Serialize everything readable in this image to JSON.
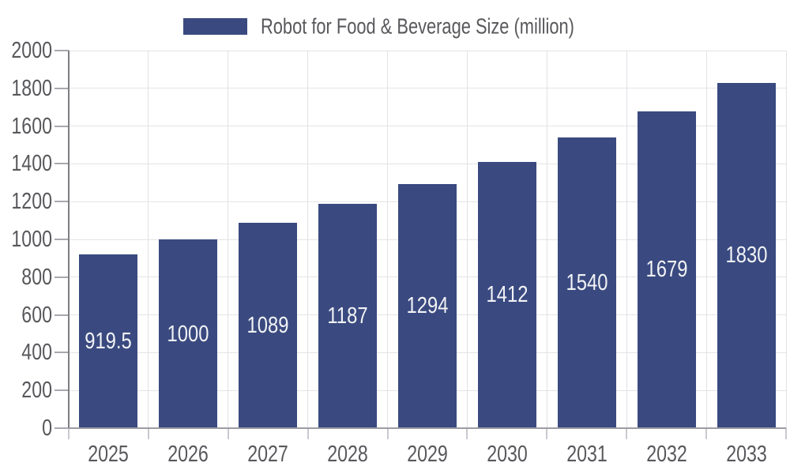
{
  "legend": {
    "label": "Robot for Food & Beverage Size (million)"
  },
  "chart_data": {
    "type": "bar",
    "title": "Robot for Food & Beverage Size (million)",
    "categories": [
      "2025",
      "2026",
      "2027",
      "2028",
      "2029",
      "2030",
      "2031",
      "2032",
      "2033"
    ],
    "values": [
      919.5,
      1000,
      1089,
      1187,
      1294,
      1412,
      1540,
      1679,
      1830
    ],
    "bar_labels": [
      "919.5",
      "1000",
      "1089",
      "1187",
      "1294",
      "1412",
      "1540",
      "1679",
      "1830"
    ],
    "xlabel": "",
    "ylabel": "",
    "ylim": [
      0,
      2000
    ],
    "ytick_step": 200,
    "ytick_labels": [
      "0",
      "200",
      "400",
      "600",
      "800",
      "1000",
      "1200",
      "1400",
      "1600",
      "1800",
      "2000"
    ],
    "grid": true,
    "legend_position": "top-center",
    "colors": {
      "bar": "#3A4A80",
      "bar_label": "#F2F3F5",
      "grid_h": "#E4E4E6",
      "grid_v": "#E2E2E8",
      "y_axis": "#7D7D82",
      "x_axis": "#9C9CA2",
      "y_tick": "#A8A8AE",
      "x_tick": "#C9C9D2",
      "text": "#58585C",
      "background": "#FFFFFF"
    }
  }
}
